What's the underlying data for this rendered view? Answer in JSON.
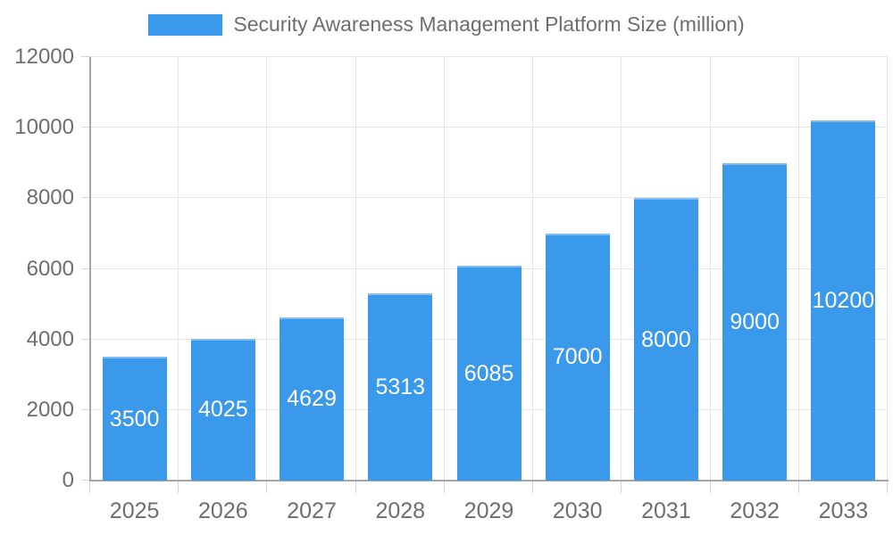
{
  "legend": {
    "label": "Security Awareness Management Platform Size (million)",
    "swatch_color": "#3b99ec"
  },
  "chart_data": {
    "type": "bar",
    "title": "Security Awareness Management Platform Size (million)",
    "categories": [
      "2025",
      "2026",
      "2027",
      "2028",
      "2029",
      "2030",
      "2031",
      "2032",
      "2033"
    ],
    "series": [
      {
        "name": "Security Awareness Management Platform Size (million)",
        "values": [
          3500,
          4025,
          4629,
          5313,
          6085,
          7000,
          8000,
          9000,
          10200
        ]
      }
    ],
    "data_labels": [
      "3500",
      "4025",
      "4629",
      "5313",
      "6085",
      "7000",
      "8000",
      "9000",
      "10200"
    ],
    "xlabel": "",
    "ylabel": "",
    "ylim": [
      0,
      12000
    ],
    "ytick_step": 2000,
    "yticks": [
      "0",
      "2000",
      "4000",
      "6000",
      "8000",
      "10000",
      "12000"
    ],
    "grid": true,
    "legend_position": "top",
    "colors": {
      "bar": "#3b99ec",
      "bar_label": "#ffffff",
      "axis_line": "#a6a6a6",
      "gridline": "#e6e6e6",
      "tick": "#d4d4d4",
      "tick_label": "#6e6e6e",
      "legend_text": "#6e6e6e",
      "background": "#ffffff"
    }
  }
}
